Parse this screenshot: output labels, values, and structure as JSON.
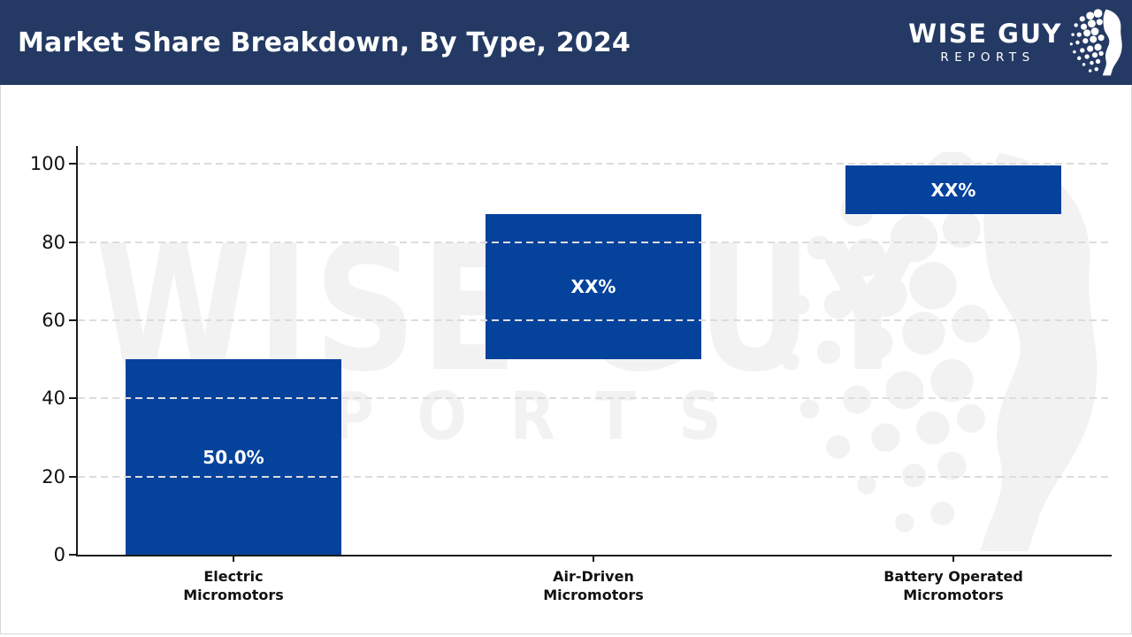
{
  "header": {
    "title": "Market Share Breakdown, By Type, 2024",
    "background_color": "#243a64",
    "logo": {
      "line1": "WISE GUY",
      "line2": "REPORTS"
    }
  },
  "watermark": {
    "line1": "WISE GUY",
    "line2": "REPORTS"
  },
  "chart_data": {
    "type": "bar",
    "subtype": "waterfall-floating-bars",
    "title": "Market Share Breakdown, By Type, 2024",
    "categories": [
      {
        "line1": "Electric",
        "line2": "Micromotors"
      },
      {
        "line1": "Air-Driven",
        "line2": "Micromotors"
      },
      {
        "line1": "Battery Operated",
        "line2": "Micromotors"
      }
    ],
    "segments": [
      {
        "start": 0,
        "end": 50,
        "label": "50.0%"
      },
      {
        "start": 50,
        "end": 87.2,
        "label": "XX%"
      },
      {
        "start": 87.2,
        "end": 99.6,
        "label": "XX%"
      }
    ],
    "y_ticks": [
      0,
      20,
      40,
      60,
      80,
      100
    ],
    "ylim": [
      0,
      104.6
    ],
    "xlabel": "",
    "ylabel": "",
    "grid": "dashed-horizontal-over-bars",
    "legend": "none",
    "bar_color": "#05429c",
    "label_color": "#ffffff",
    "grid_color": "#dcdcdc",
    "axis_color": "#1a1a1a",
    "tick_label_color": "#111111"
  }
}
